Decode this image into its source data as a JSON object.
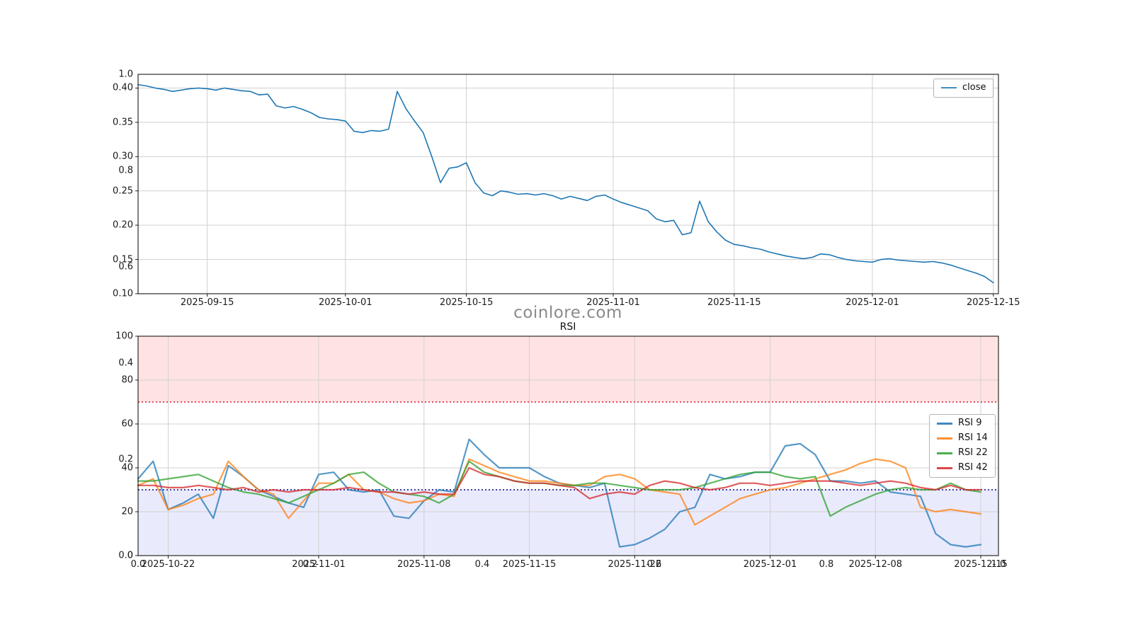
{
  "watermark": "coinlore.com",
  "figure_axis": {
    "left_labels": [
      "1.0",
      "0.8",
      "0.6",
      "0.4",
      "0.2",
      "0.0"
    ],
    "bottom_labels": [
      "0.0",
      "0.2",
      "0.4",
      "0.6",
      "0.8",
      "1.0"
    ]
  },
  "chart_data": [
    {
      "name": "price",
      "type": "line",
      "title": "",
      "xlabel": "",
      "ylabel": "",
      "grid": true,
      "legend_position": "upper right",
      "ylim": [
        0.1,
        0.42
      ],
      "yticks": [
        {
          "v": 0.4,
          "label": "0.40"
        },
        {
          "v": 0.35,
          "label": "0.35"
        },
        {
          "v": 0.3,
          "label": "0.30"
        },
        {
          "v": 0.25,
          "label": "0.25"
        },
        {
          "v": 0.2,
          "label": "0.20"
        },
        {
          "v": 0.15,
          "label": "0.15"
        },
        {
          "v": 0.1,
          "label": "0.10"
        }
      ],
      "xticks": [
        "2025-09-15",
        "2025-10-01",
        "2025-10-15",
        "2025-11-01",
        "2025-11-15",
        "2025-12-01",
        "2025-12-15"
      ],
      "dates": [
        "2025-09-07",
        "2025-09-08",
        "2025-09-09",
        "2025-09-10",
        "2025-09-11",
        "2025-09-12",
        "2025-09-13",
        "2025-09-14",
        "2025-09-15",
        "2025-09-16",
        "2025-09-17",
        "2025-09-18",
        "2025-09-19",
        "2025-09-20",
        "2025-09-21",
        "2025-09-22",
        "2025-09-23",
        "2025-09-24",
        "2025-09-25",
        "2025-09-26",
        "2025-09-27",
        "2025-09-28",
        "2025-09-29",
        "2025-09-30",
        "2025-10-01",
        "2025-10-02",
        "2025-10-03",
        "2025-10-04",
        "2025-10-05",
        "2025-10-06",
        "2025-10-07",
        "2025-10-08",
        "2025-10-09",
        "2025-10-10",
        "2025-10-11",
        "2025-10-12",
        "2025-10-13",
        "2025-10-14",
        "2025-10-15",
        "2025-10-16",
        "2025-10-17",
        "2025-10-18",
        "2025-10-19",
        "2025-10-20",
        "2025-10-21",
        "2025-10-22",
        "2025-10-23",
        "2025-10-24",
        "2025-10-25",
        "2025-10-26",
        "2025-10-27",
        "2025-10-28",
        "2025-10-29",
        "2025-10-30",
        "2025-10-31",
        "2025-11-01",
        "2025-11-02",
        "2025-11-03",
        "2025-11-04",
        "2025-11-05",
        "2025-11-06",
        "2025-11-07",
        "2025-11-08",
        "2025-11-09",
        "2025-11-10",
        "2025-11-11",
        "2025-11-12",
        "2025-11-13",
        "2025-11-14",
        "2025-11-15",
        "2025-11-16",
        "2025-11-17",
        "2025-11-18",
        "2025-11-19",
        "2025-11-20",
        "2025-11-21",
        "2025-11-22",
        "2025-11-23",
        "2025-11-24",
        "2025-11-25",
        "2025-11-26",
        "2025-11-27",
        "2025-11-28",
        "2025-11-29",
        "2025-11-30",
        "2025-12-01",
        "2025-12-02",
        "2025-12-03",
        "2025-12-04",
        "2025-12-05",
        "2025-12-06",
        "2025-12-07",
        "2025-12-08",
        "2025-12-09",
        "2025-12-10",
        "2025-12-11",
        "2025-12-12",
        "2025-12-13",
        "2025-12-14",
        "2025-12-15"
      ],
      "series": [
        {
          "name": "close",
          "color": "#1f77b4",
          "values": [
            0.405,
            0.403,
            0.4,
            0.398,
            0.395,
            0.397,
            0.399,
            0.4,
            0.399,
            0.397,
            0.4,
            0.398,
            0.396,
            0.395,
            0.39,
            0.391,
            0.374,
            0.371,
            0.373,
            0.369,
            0.364,
            0.357,
            0.355,
            0.354,
            0.352,
            0.337,
            0.335,
            0.338,
            0.337,
            0.34,
            0.395,
            0.37,
            0.352,
            0.335,
            0.3,
            0.262,
            0.283,
            0.285,
            0.291,
            0.262,
            0.247,
            0.243,
            0.25,
            0.248,
            0.245,
            0.246,
            0.244,
            0.246,
            0.243,
            0.238,
            0.242,
            0.239,
            0.236,
            0.242,
            0.244,
            0.238,
            0.233,
            0.229,
            0.225,
            0.221,
            0.209,
            0.205,
            0.207,
            0.186,
            0.189,
            0.235,
            0.205,
            0.19,
            0.178,
            0.172,
            0.17,
            0.167,
            0.165,
            0.161,
            0.158,
            0.155,
            0.153,
            0.151,
            0.153,
            0.158,
            0.157,
            0.153,
            0.15,
            0.148,
            0.147,
            0.146,
            0.15,
            0.151,
            0.149,
            0.148,
            0.147,
            0.146,
            0.147,
            0.145,
            0.142,
            0.138,
            0.134,
            0.13,
            0.125,
            0.116
          ]
        }
      ]
    },
    {
      "name": "rsi",
      "type": "line",
      "title": "RSI",
      "xlabel": "",
      "ylabel": "",
      "grid": true,
      "legend_position": "right",
      "ylim": [
        0,
        100
      ],
      "yticks": [
        {
          "v": 100,
          "label": "100"
        },
        {
          "v": 80,
          "label": "80"
        },
        {
          "v": 60,
          "label": "60"
        },
        {
          "v": 40,
          "label": "40"
        },
        {
          "v": 20,
          "label": "20"
        },
        {
          "v": 0,
          "label": "0"
        }
      ],
      "xticks": [
        "2025-10-22",
        "2025-11-01",
        "2025-11-08",
        "2025-11-15",
        "2025-11-22",
        "2025-12-01",
        "2025-12-08",
        "2025-12-15"
      ],
      "bands": [
        {
          "from": 70,
          "to": 100,
          "color": "rgba(255,0,0,0.11)",
          "meaning": "overbought"
        },
        {
          "from": 0,
          "to": 30,
          "color": "rgba(60,60,235,0.11)",
          "meaning": "oversold"
        }
      ],
      "hlines": [
        {
          "y": 70,
          "color": "#dc143c",
          "style": "dotted"
        },
        {
          "y": 30,
          "color": "#000080",
          "style": "dotted"
        }
      ],
      "dates": [
        "2025-10-20",
        "2025-10-21",
        "2025-10-22",
        "2025-10-23",
        "2025-10-24",
        "2025-10-25",
        "2025-10-26",
        "2025-10-27",
        "2025-10-28",
        "2025-10-29",
        "2025-10-30",
        "2025-10-31",
        "2025-11-01",
        "2025-11-02",
        "2025-11-03",
        "2025-11-04",
        "2025-11-05",
        "2025-11-06",
        "2025-11-07",
        "2025-11-08",
        "2025-11-09",
        "2025-11-10",
        "2025-11-11",
        "2025-11-12",
        "2025-11-13",
        "2025-11-14",
        "2025-11-15",
        "2025-11-16",
        "2025-11-17",
        "2025-11-18",
        "2025-11-19",
        "2025-11-20",
        "2025-11-21",
        "2025-11-22",
        "2025-11-23",
        "2025-11-24",
        "2025-11-25",
        "2025-11-26",
        "2025-11-27",
        "2025-11-28",
        "2025-11-29",
        "2025-11-30",
        "2025-12-01",
        "2025-12-02",
        "2025-12-03",
        "2025-12-04",
        "2025-12-05",
        "2025-12-06",
        "2025-12-07",
        "2025-12-08",
        "2025-12-09",
        "2025-12-10",
        "2025-12-11",
        "2025-12-12",
        "2025-12-13",
        "2025-12-14",
        "2025-12-15"
      ],
      "series": [
        {
          "name": "RSI 9",
          "color": "#1f77b4",
          "values": [
            35,
            43,
            21,
            24,
            28,
            17,
            41,
            36,
            30,
            27,
            24,
            22,
            37,
            38,
            30,
            29,
            30,
            18,
            17,
            25,
            30,
            29,
            53,
            46,
            40,
            40,
            40,
            36,
            33,
            32,
            31,
            33,
            4,
            5,
            8,
            12,
            20,
            22,
            37,
            35,
            36,
            38,
            38,
            50,
            51,
            46,
            34,
            34,
            33,
            34,
            29,
            28,
            27,
            10,
            5,
            4,
            5
          ]
        },
        {
          "name": "RSI 14",
          "color": "#ff7f0e",
          "values": [
            32,
            35,
            21,
            23,
            26,
            28,
            43,
            36,
            30,
            28,
            17,
            25,
            33,
            33,
            37,
            30,
            29,
            26,
            24,
            25,
            28,
            27,
            44,
            41,
            38,
            36,
            34,
            34,
            33,
            32,
            32,
            36,
            37,
            35,
            30,
            29,
            28,
            14,
            18,
            22,
            26,
            28,
            30,
            31,
            33,
            35,
            37,
            39,
            42,
            44,
            43,
            40,
            22,
            20,
            21,
            20,
            19
          ]
        },
        {
          "name": "RSI 22",
          "color": "#2ca02c",
          "values": [
            34,
            34,
            35,
            36,
            37,
            34,
            31,
            29,
            28,
            26,
            24,
            27,
            30,
            33,
            37,
            38,
            33,
            29,
            28,
            27,
            24,
            28,
            43,
            38,
            36,
            34,
            33,
            33,
            32,
            32,
            33,
            33,
            32,
            31,
            30,
            30,
            30,
            31,
            33,
            35,
            37,
            38,
            38,
            36,
            35,
            36,
            18,
            22,
            25,
            28,
            30,
            31,
            30,
            30,
            33,
            30,
            29
          ]
        },
        {
          "name": "RSI 42",
          "color": "#d62728",
          "values": [
            32,
            32,
            31,
            31,
            32,
            31,
            30,
            31,
            29,
            30,
            29,
            30,
            30,
            30,
            31,
            30,
            29,
            29,
            28,
            29,
            28,
            28,
            40,
            37,
            36,
            34,
            33,
            33,
            32,
            31,
            26,
            28,
            29,
            28,
            32,
            34,
            33,
            31,
            30,
            31,
            33,
            33,
            32,
            33,
            34,
            34,
            34,
            33,
            32,
            33,
            34,
            33,
            31,
            30,
            32,
            30,
            30
          ]
        }
      ]
    }
  ]
}
